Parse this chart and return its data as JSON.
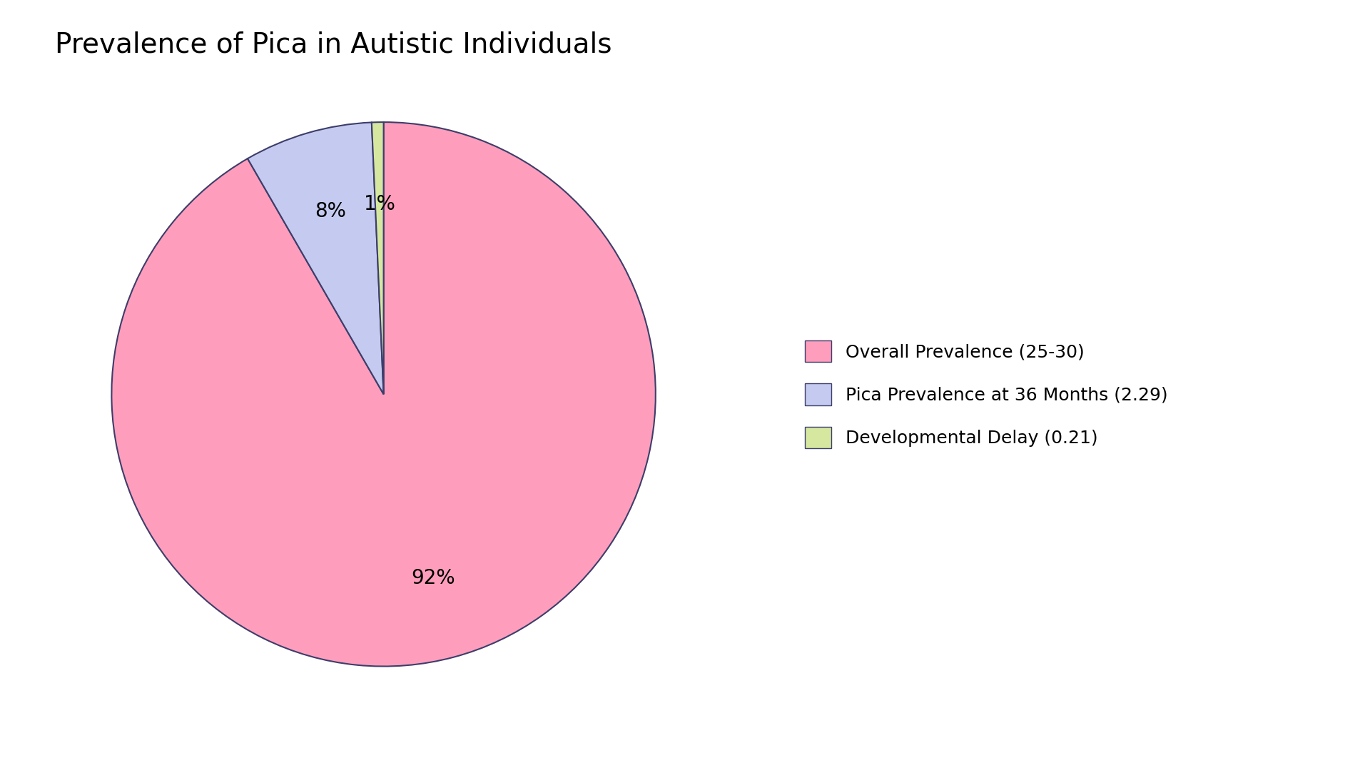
{
  "title": "Prevalence of Pica in Autistic Individuals",
  "slices": [
    27.5,
    2.29,
    0.21
  ],
  "labels": [
    "Overall Prevalence (25-30)",
    "Pica Prevalence at 36 Months (2.29)",
    "Developmental Delay (0.21)"
  ],
  "colors": [
    "#FF9EBC",
    "#C5CBF0",
    "#D6E8A0"
  ],
  "edge_color": "#3D3D6B",
  "edge_width": 1.5,
  "autopct_labels": [
    "92%",
    "8%",
    "1%"
  ],
  "title_fontsize": 28,
  "legend_fontsize": 18,
  "autopct_fontsize": 20,
  "background_color": "#FFFFFF",
  "startangle": 90,
  "pctdistance": 0.7
}
